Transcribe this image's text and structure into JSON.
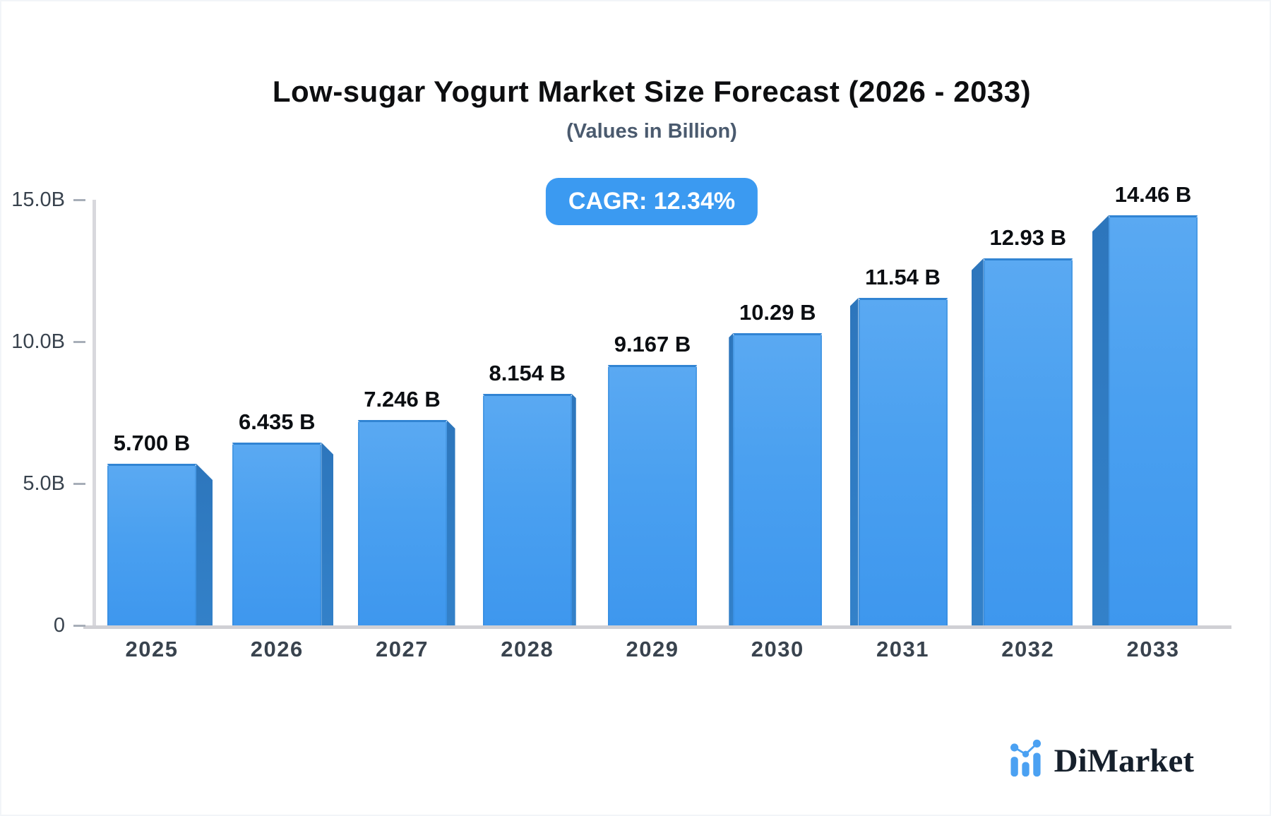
{
  "header": {
    "title": "Low-sugar Yogurt Market Size Forecast (2026 - 2033)",
    "subtitle": "(Values in Billion)",
    "cagr_badge": "CAGR: 12.34%"
  },
  "chart_data": {
    "type": "bar",
    "title": "Low-sugar Yogurt Market Size Forecast (2026 - 2033)",
    "subtitle": "(Values in Billion)",
    "annotation": "CAGR: 12.34%",
    "cagr_percent": 12.34,
    "unit": "Billion",
    "categories": [
      "2025",
      "2026",
      "2027",
      "2028",
      "2029",
      "2030",
      "2031",
      "2032",
      "2033"
    ],
    "values": [
      5.7,
      6.435,
      7.246,
      8.154,
      9.167,
      10.29,
      11.54,
      12.93,
      14.46
    ],
    "value_labels": [
      "5.700 B",
      "6.435 B",
      "7.246 B",
      "8.154 B",
      "9.167 B",
      "10.29 B",
      "11.54 B",
      "12.93 B",
      "14.46 B"
    ],
    "xlabel": "",
    "ylabel": "",
    "ylim": [
      0,
      15
    ],
    "yticks": [
      {
        "label": "15.0B",
        "value": 15.0
      },
      {
        "label": "10.0B",
        "value": 10.0
      },
      {
        "label": "5.0B",
        "value": 5.0
      },
      {
        "label": "0",
        "value": 0
      }
    ],
    "grid": false,
    "legend": null,
    "colors": {
      "bar_face_top": "#5aa9f2",
      "bar_face_bottom": "#3e97ee",
      "bar_side": "#2e7abf",
      "bar_top_edge": "#3184d3",
      "badge_bg": "#3b9af1",
      "axis_line": "#d4d4d9",
      "tick_text": "#39434e",
      "value_text": "#0b0e12"
    }
  },
  "footer": {
    "brand": "DiMarket"
  }
}
